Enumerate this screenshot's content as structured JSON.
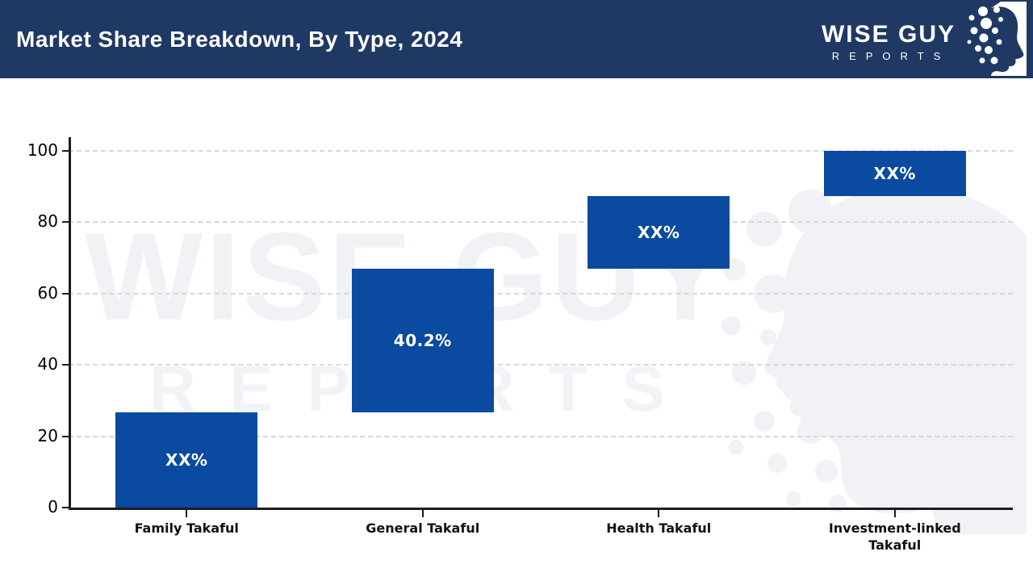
{
  "header": {
    "title": "Market Share Breakdown, By Type, 2024",
    "logo": {
      "line1": "WISE GUY",
      "line2": "REPORTS"
    }
  },
  "watermark": {
    "line1": "WISE GUY",
    "line2": "REPORTS"
  },
  "colors": {
    "header_bg": "#1F3864",
    "bar": "#0A4AA0",
    "gridline": "#D8D8D8",
    "axis": "#1C1C1C",
    "watermark": "#F1F2F5"
  },
  "chart_data": {
    "type": "bar",
    "subtype": "waterfall",
    "title": "Market Share Breakdown, By Type, 2024",
    "xlabel": "",
    "ylabel": "",
    "categories": [
      "Family Takaful",
      "General Takaful",
      "Health Takaful",
      "Investment-linked Takaful"
    ],
    "segments": [
      {
        "category": "Family Takaful",
        "start": 0,
        "end": 26.8,
        "label": "XX%"
      },
      {
        "category": "General Takaful",
        "start": 26.8,
        "end": 67.0,
        "label": "40.2%",
        "value": 40.2
      },
      {
        "category": "Health Takaful",
        "start": 67.0,
        "end": 87.3,
        "label": "XX%"
      },
      {
        "category": "Investment-linked Takaful",
        "start": 87.3,
        "end": 100,
        "label": "XX%"
      }
    ],
    "y_ticks": [
      0,
      20,
      40,
      60,
      80,
      100
    ],
    "ylim": [
      0,
      104
    ],
    "grid": "horizontal-dashed",
    "legend": "none"
  }
}
